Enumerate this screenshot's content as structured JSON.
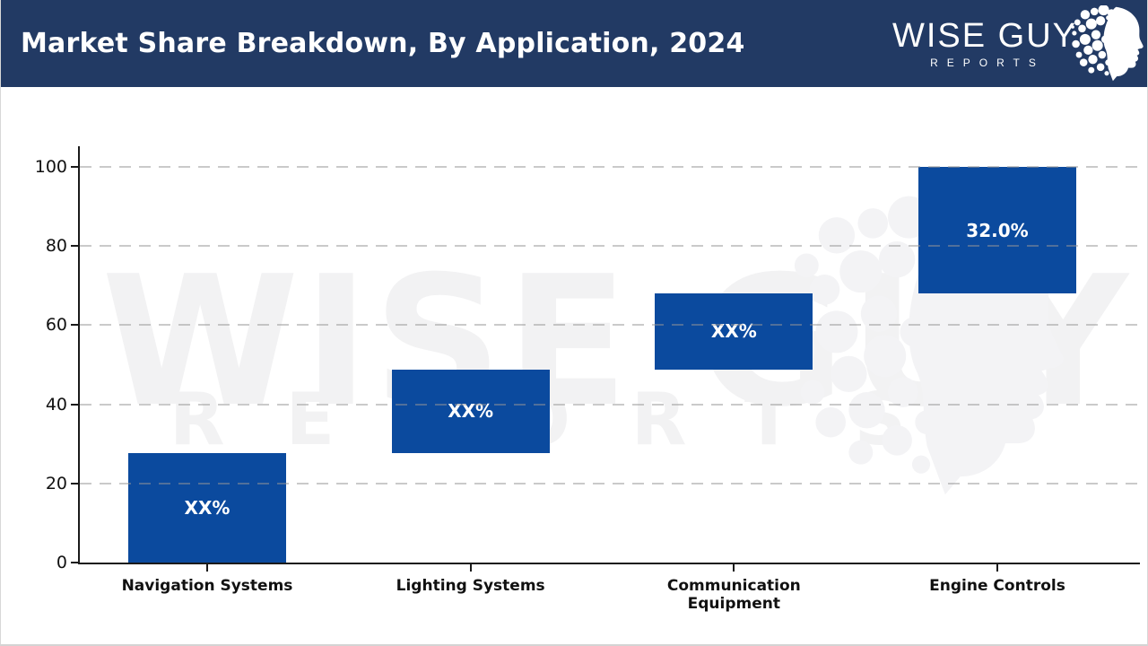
{
  "header": {
    "title": "Market Share Breakdown, By Application, 2024",
    "logo": {
      "wordmark": "WISE GUY",
      "subtext": "REPORTS"
    }
  },
  "watermark": {
    "wordmark": "WISE GUY",
    "subtext": "REPORTS"
  },
  "colors": {
    "header_bg": "#223a64",
    "bar": "#0b4a9e",
    "axis": "#1a1a1a",
    "watermark": "#f2f2f3",
    "bar_label_text": "#ffffff"
  },
  "chart_data": {
    "type": "bar",
    "subtype": "waterfall",
    "title": "Market Share Breakdown, By Application, 2024",
    "xlabel": "",
    "ylabel": "",
    "ylim": [
      0,
      105
    ],
    "yticks": [
      0,
      20,
      40,
      60,
      80,
      100
    ],
    "grid": "horizontal dashed, drawn over bars",
    "legend": "none",
    "categories": [
      "Navigation Systems",
      "Lighting Systems",
      "Communication Equipment",
      "Engine Controls"
    ],
    "segments": [
      {
        "category": "Navigation Systems",
        "start": 0,
        "end": 27.7,
        "value": 27.7,
        "label": "XX%"
      },
      {
        "category": "Lighting Systems",
        "start": 27.7,
        "end": 48.8,
        "value": 21.1,
        "label": "XX%"
      },
      {
        "category": "Communication Equipment",
        "start": 48.8,
        "end": 68.0,
        "value": 19.2,
        "label": "XX%"
      },
      {
        "category": "Engine Controls",
        "start": 68.0,
        "end": 100.0,
        "value": 32.0,
        "label": "32.0%"
      }
    ]
  }
}
